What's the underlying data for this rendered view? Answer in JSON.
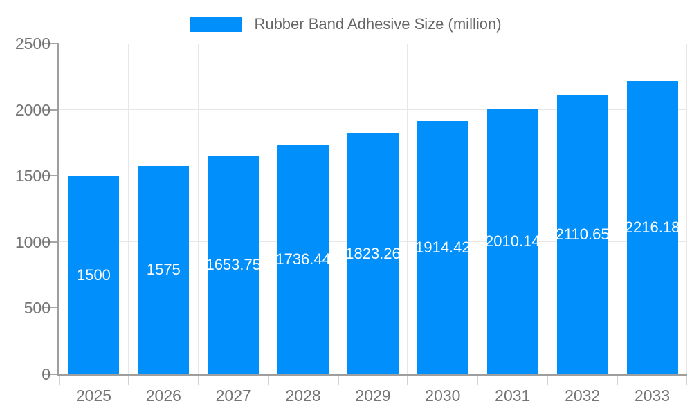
{
  "legend": {
    "label": "Rubber Band Adhesive Size (million)"
  },
  "chart_data": {
    "type": "bar",
    "title": "",
    "series_name": "Rubber Band Adhesive Size (million)",
    "categories": [
      "2025",
      "2026",
      "2027",
      "2028",
      "2029",
      "2030",
      "2031",
      "2032",
      "2033"
    ],
    "values": [
      1500,
      1575,
      1653.75,
      1736.44,
      1823.26,
      1914.42,
      2010.14,
      2110.65,
      2216.18
    ],
    "value_labels": [
      "1500",
      "1575",
      "1653.75",
      "1736.44",
      "1823.26",
      "1914.42",
      "2010.14",
      "2110.65",
      "2216.18"
    ],
    "xlabel": "",
    "ylabel": "",
    "ylim": [
      0,
      2500
    ],
    "yticks": [
      0,
      500,
      1000,
      1500,
      2000,
      2500
    ],
    "grid": true,
    "legend_position": "top",
    "colors": {
      "bar": "#008FFB",
      "grid": "#e7e7e7",
      "axis": "#9e9e9e",
      "y_tick": "#a6a6a6",
      "x_tick": "#d2d2d2",
      "tick_text": "#757575",
      "legend_text": "#666666",
      "bar_label": "#ffffff"
    }
  }
}
